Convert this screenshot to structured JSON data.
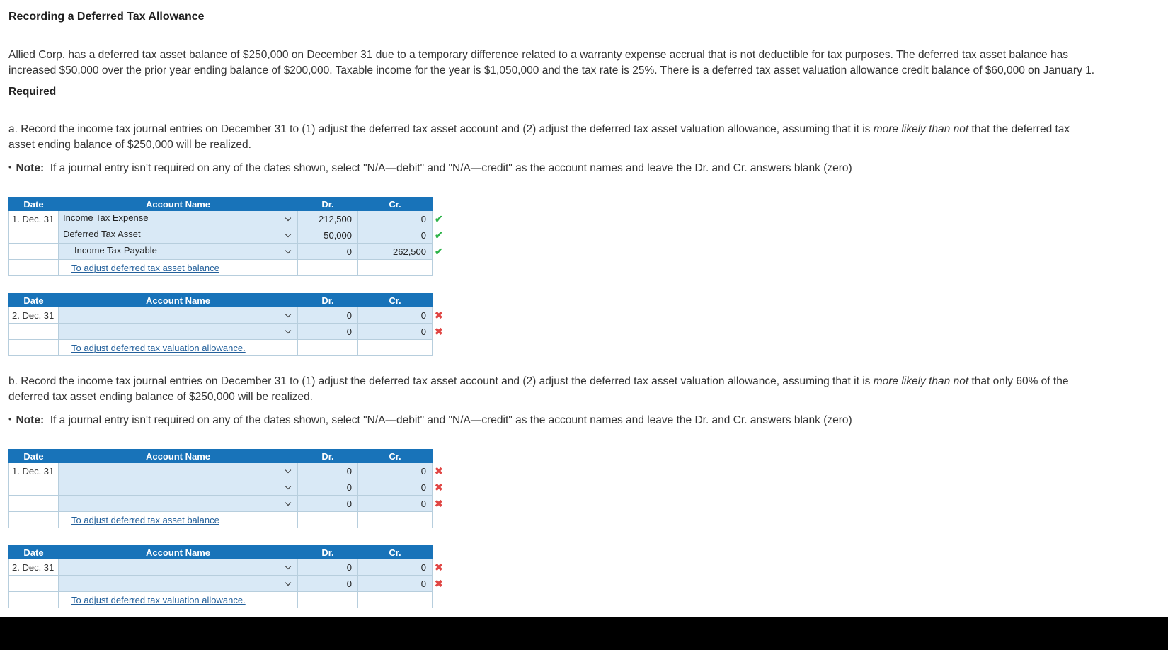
{
  "title": "Recording a Deferred Tax Allowance",
  "intro": "Allied Corp. has a deferred tax asset balance of $250,000 on December 31 due to a temporary difference related to a warranty expense accrual that is not deductible for tax purposes. The deferred tax asset balance has increased $50,000 over the prior year ending balance of $200,000. Taxable income for the year is $1,050,000 and the tax rate is 25%. There is a deferred tax asset valuation allowance credit balance of $60,000 on January 1.",
  "required_label": "Required",
  "part_a": {
    "prefix": "a. Record the income tax journal entries on December 31 to (1) adjust the deferred tax asset account and (2) adjust the deferred tax asset valuation allowance, assuming that it is ",
    "italic": "more likely than not",
    "suffix": " that the deferred tax asset ending balance of $250,000 will be realized."
  },
  "part_b": {
    "prefix": "b. Record the income tax journal entries on December 31 to (1) adjust the deferred tax asset account and (2) adjust the deferred tax asset valuation allowance, assuming that it is ",
    "italic": "more likely than not",
    "suffix": " that only 60% of the deferred tax asset ending balance of $250,000 will be realized."
  },
  "note": {
    "bullet": "•",
    "label": "Note:",
    "text": "If a journal entry isn't required on any of the dates shown, select \"N/A—debit\" and \"N/A—credit\" as the account names and leave the Dr. and Cr. answers blank (zero)"
  },
  "headers": {
    "date": "Date",
    "account": "Account Name",
    "dr": "Dr.",
    "cr": "Cr."
  },
  "icons": {
    "correct": "✔",
    "incorrect": "✖"
  },
  "colors": {
    "header_blue": "#1873b9",
    "input_cell_blue": "#d9e9f6",
    "correct_green": "#2eb34a",
    "incorrect_red": "#e04543",
    "description_link_blue": "#23609b"
  },
  "tables": [
    {
      "name": "a-entry-1",
      "rows": [
        {
          "date": "1. Dec. 31",
          "account": "Income Tax Expense",
          "dr": "212,500",
          "cr": "0",
          "status": "correct"
        },
        {
          "date": "",
          "account": "Deferred Tax Asset",
          "dr": "50,000",
          "cr": "0",
          "status": "correct"
        },
        {
          "date": "",
          "account": "Income Tax Payable",
          "dr": "0",
          "cr": "262,500",
          "status": "correct",
          "indented": true
        }
      ],
      "description": "To adjust deferred tax asset balance"
    },
    {
      "name": "a-entry-2",
      "rows": [
        {
          "date": "2. Dec. 31",
          "account": "",
          "dr": "0",
          "cr": "0",
          "status": "incorrect"
        },
        {
          "date": "",
          "account": "",
          "dr": "0",
          "cr": "0",
          "status": "incorrect"
        }
      ],
      "description": "To adjust deferred tax valuation allowance."
    },
    {
      "name": "b-entry-1",
      "rows": [
        {
          "date": "1. Dec. 31",
          "account": "",
          "dr": "0",
          "cr": "0",
          "status": "incorrect"
        },
        {
          "date": "",
          "account": "",
          "dr": "0",
          "cr": "0",
          "status": "incorrect"
        },
        {
          "date": "",
          "account": "",
          "dr": "0",
          "cr": "0",
          "status": "incorrect"
        }
      ],
      "description": "To adjust deferred tax asset balance"
    },
    {
      "name": "b-entry-2",
      "rows": [
        {
          "date": "2. Dec. 31",
          "account": "",
          "dr": "0",
          "cr": "0",
          "status": "incorrect"
        },
        {
          "date": "",
          "account": "",
          "dr": "0",
          "cr": "0",
          "status": "incorrect"
        }
      ],
      "description": "To adjust deferred tax valuation allowance."
    }
  ]
}
